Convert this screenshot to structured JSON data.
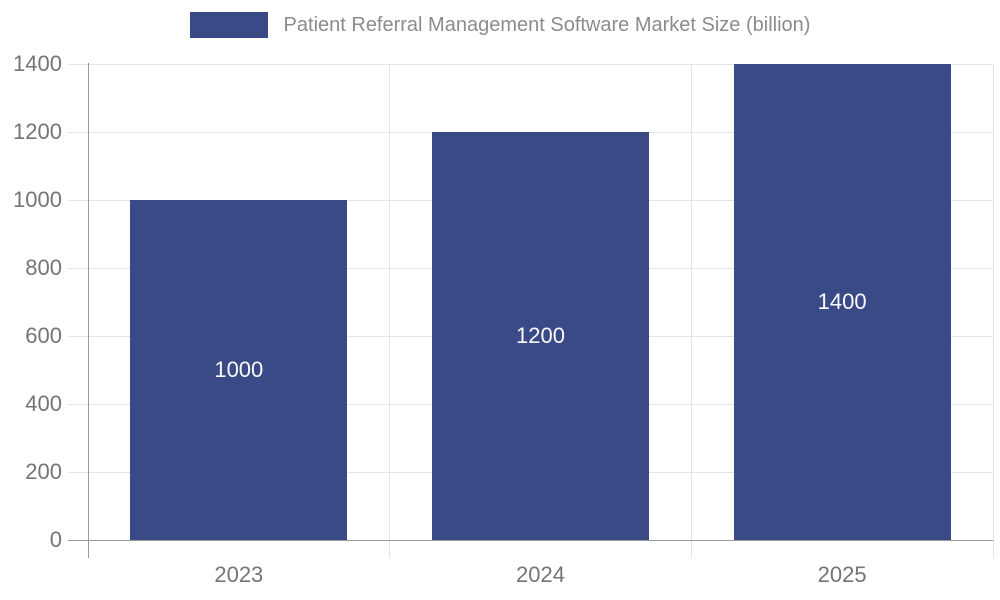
{
  "legend": {
    "label": "Patient Referral Management Software Market Size (billion)"
  },
  "chart_data": {
    "type": "bar",
    "title": "Patient Referral Management Software Market Size (billion)",
    "categories": [
      "2023",
      "2024",
      "2025"
    ],
    "values": [
      1000,
      1200,
      1400
    ],
    "series": [
      {
        "name": "Patient Referral Management Software Market Size (billion)",
        "values": [
          1000,
          1200,
          1400
        ]
      }
    ],
    "data_labels": [
      "1000",
      "1200",
      "1400"
    ],
    "xlabel": "",
    "ylabel": "",
    "ylim": [
      0,
      1400
    ],
    "yticks": [
      0,
      200,
      400,
      600,
      800,
      1000,
      1200,
      1400
    ],
    "grid": true,
    "legend_position": "top",
    "colors": {
      "bar": "#3a4a86",
      "gridline": "#e5e5e5",
      "axis_line": "#9b9b9b",
      "axis_text": "#757575",
      "legend_text": "#8c8c8c",
      "data_label": "#fafafa"
    }
  }
}
